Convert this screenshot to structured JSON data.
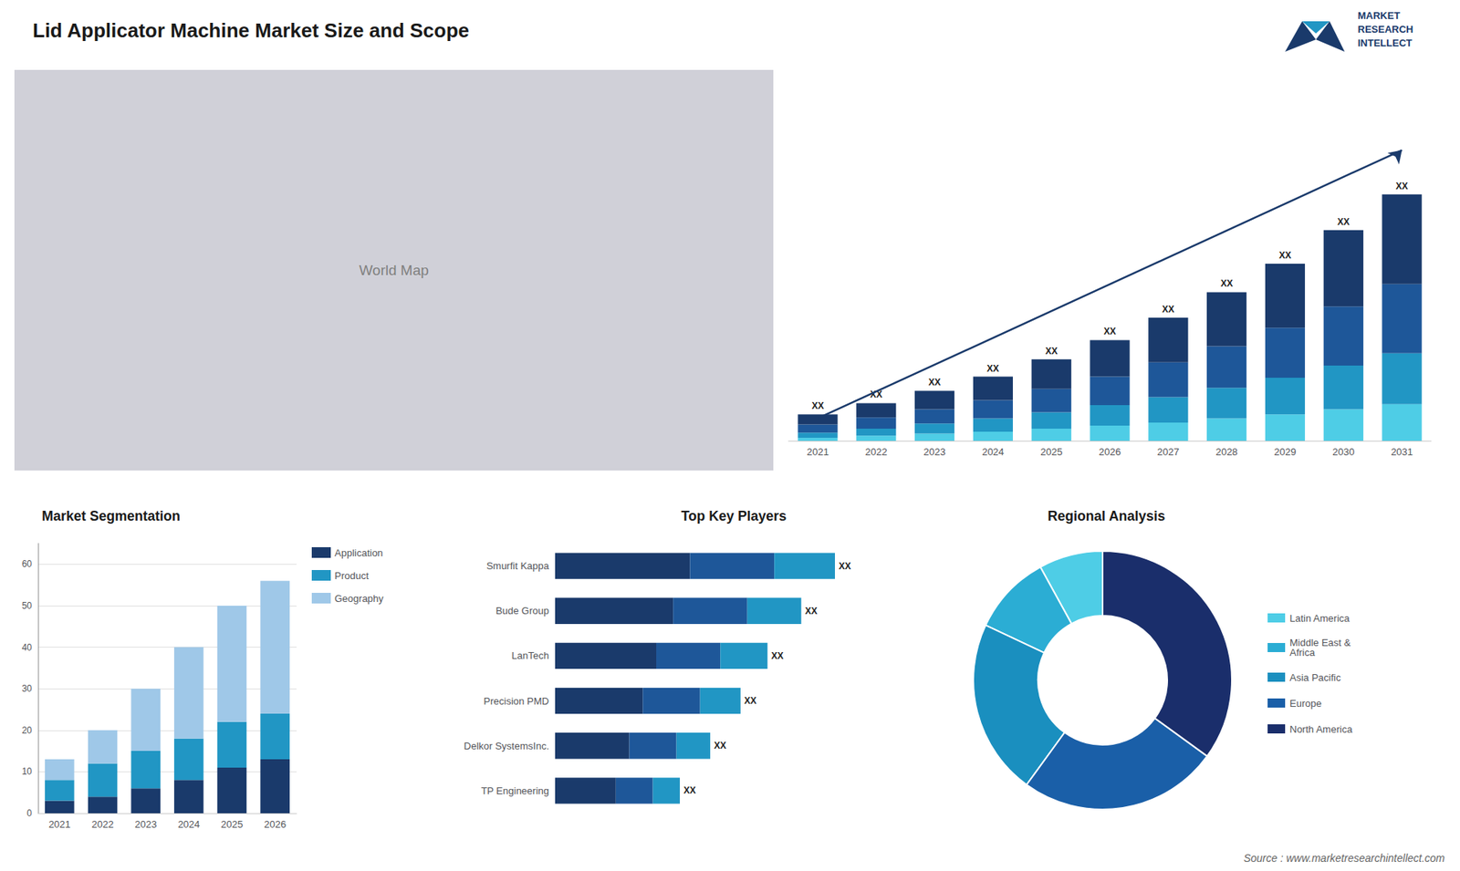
{
  "title": "Lid Applicator Machine Market Size and Scope",
  "annotations": [
    "MARKET",
    "RESEARCH",
    "INTELLECT",
    "Source : www.marketresearchintellect.com"
  ],
  "chart_data": [
    {
      "type": "map",
      "color": "#d0d0d8",
      "annotations": [
        "World Map"
      ]
    },
    {
      "type": "bar",
      "stacked": true,
      "categories": [
        "2021",
        "2022",
        "2023",
        "2024",
        "2025",
        "2026",
        "2027",
        "2028",
        "2029",
        "2030",
        "2031"
      ],
      "series": [
        {
          "color": "#4ecde6",
          "values": [
            0.3,
            0.5,
            0.7,
            0.9,
            1.2,
            1.5,
            1.8,
            2.2,
            2.6,
            3.1,
            3.6
          ]
        },
        {
          "color": "#2196c4",
          "values": [
            0.5,
            0.7,
            1.0,
            1.3,
            1.6,
            2.0,
            2.5,
            3.0,
            3.6,
            4.3,
            5.0
          ]
        },
        {
          "color": "#1e5799",
          "values": [
            0.8,
            1.1,
            1.4,
            1.8,
            2.3,
            2.8,
            3.4,
            4.1,
            4.9,
            5.8,
            6.8
          ]
        },
        {
          "color": "#1a3a6b",
          "values": [
            1.0,
            1.4,
            1.8,
            2.3,
            2.9,
            3.6,
            4.4,
            5.3,
            6.3,
            7.5,
            8.8
          ]
        },
        {
          "type": "line",
          "color": "#1a3a6b",
          "values": [
            2.21,
            null,
            null,
            null,
            null,
            null,
            null,
            null,
            null,
            null,
            28.556
          ]
        }
      ],
      "annotations": [
        "XX",
        "XX",
        "XX",
        "XX",
        "XX",
        "XX",
        "XX",
        "XX",
        "XX",
        "XX",
        "XX"
      ],
      "ylim": [
        0,
        35.09
      ],
      "tick_labels": "x",
      "grid": false
    },
    {
      "type": "bar",
      "title": "Market Segmentation",
      "stacked": true,
      "categories": [
        "2021",
        "2022",
        "2023",
        "2024",
        "2025",
        "2026"
      ],
      "series": [
        {
          "name": "Application",
          "color": "#1a3a6b",
          "values": [
            3,
            4,
            6,
            8,
            11,
            13
          ]
        },
        {
          "name": "Product",
          "color": "#2196c4",
          "values": [
            5,
            8,
            9,
            10,
            11,
            11
          ]
        },
        {
          "name": "Geography",
          "color": "#9fc8e8",
          "values": [
            5,
            8,
            15,
            22,
            28,
            32
          ]
        }
      ],
      "ylim": [
        0,
        65
      ],
      "yticks": [
        0,
        10,
        20,
        30,
        40,
        50,
        60
      ],
      "grid": true,
      "legend": "right"
    },
    {
      "type": "bar",
      "title": "Top Key Players",
      "orientation": "horizontal",
      "stacked": true,
      "categories": [
        "Smurfit Kappa",
        "Bude Group",
        "LanTech",
        "Precision PMD",
        "Delkor SystemsInc.",
        "TP Engineering"
      ],
      "series": [
        {
          "color": "#1a3a6b",
          "values": [
            4.0,
            3.5,
            3.0,
            2.6,
            2.2,
            1.8
          ]
        },
        {
          "color": "#1e5799",
          "values": [
            2.5,
            2.2,
            1.9,
            1.7,
            1.4,
            1.1
          ]
        },
        {
          "color": "#2196c4",
          "values": [
            1.8,
            1.6,
            1.4,
            1.2,
            1.0,
            0.8
          ]
        }
      ],
      "annotations": [
        "XX",
        "XX",
        "XX",
        "XX",
        "XX",
        "XX"
      ],
      "xlim": [
        0,
        10.375
      ],
      "tick_labels": "y",
      "grid": false
    },
    {
      "type": "pie",
      "title": "Regional Analysis",
      "categories": [
        "Latin America",
        "Middle East &\nAfrica",
        "Asia Pacific",
        "Europe",
        "North America"
      ],
      "values": [
        8,
        10,
        22,
        25,
        35
      ],
      "colors": [
        "#4ecde6",
        "#2badd4",
        "#1a8fbf",
        "#1a5fa8",
        "#1a2e6b"
      ],
      "legend": "right"
    }
  ]
}
